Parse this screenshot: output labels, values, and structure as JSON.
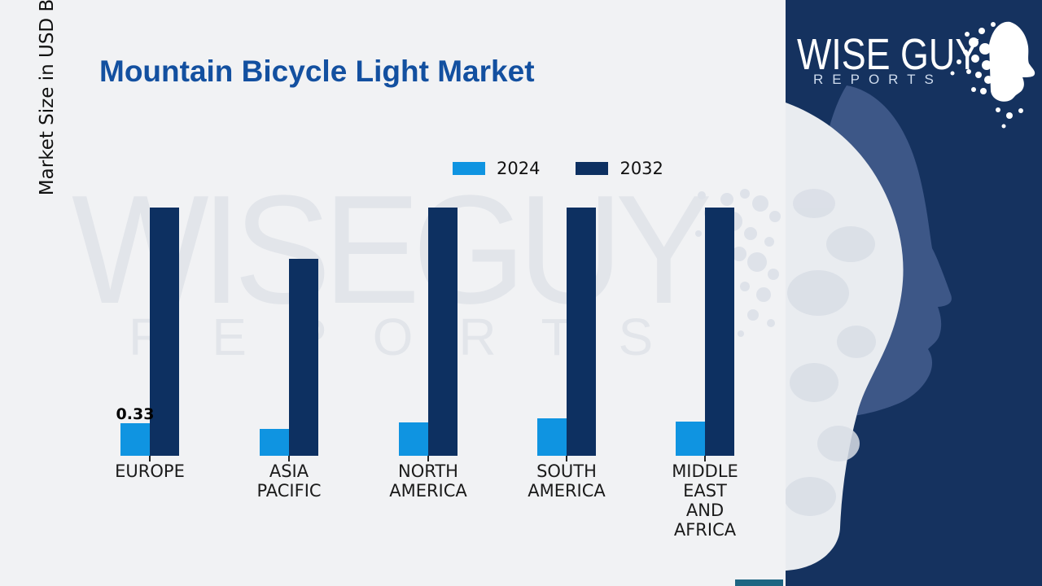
{
  "title": {
    "text": "Mountain Bicycle Light Market",
    "color": "#1350a0"
  },
  "chart_data": {
    "type": "bar",
    "categories": [
      "EUROPE",
      "ASIA PACIFIC",
      "NORTH AMERICA",
      "SOUTH AMERICA",
      "MIDDLE EAST AND AFRICA"
    ],
    "series": [
      {
        "name": "2024",
        "color": "#0f94e1",
        "values": [
          0.33,
          0.27,
          0.34,
          0.38,
          0.35
        ]
      },
      {
        "name": "2032",
        "color": "#0d3061",
        "values": [
          2.52,
          2.0,
          2.52,
          2.52,
          2.52
        ]
      }
    ],
    "title": "Mountain Bicycle Light Market",
    "xlabel": "",
    "ylabel": "Market Size in USD Billion",
    "ylim": [
      0,
      2.6
    ],
    "grid": false,
    "legend_position": "top-center",
    "annotations": [
      {
        "series": "2024",
        "category": "EUROPE",
        "text": "0.33"
      }
    ]
  },
  "watermark": {
    "line1": "WISEGUY",
    "line2": "REPORTS"
  },
  "brand": {
    "line1": "WISE GUY",
    "line2": "REPORTS"
  },
  "colors": {
    "background": "#f1f2f4",
    "bar_2024": "#0f94e1",
    "bar_2032": "#0d3061",
    "panel_navy": "#15325f",
    "face_blue": "#3d5787",
    "blob_gray": "#e9ecf0",
    "watermark_gray": "#e2e5ea",
    "teal_accent": "#1e6582"
  }
}
